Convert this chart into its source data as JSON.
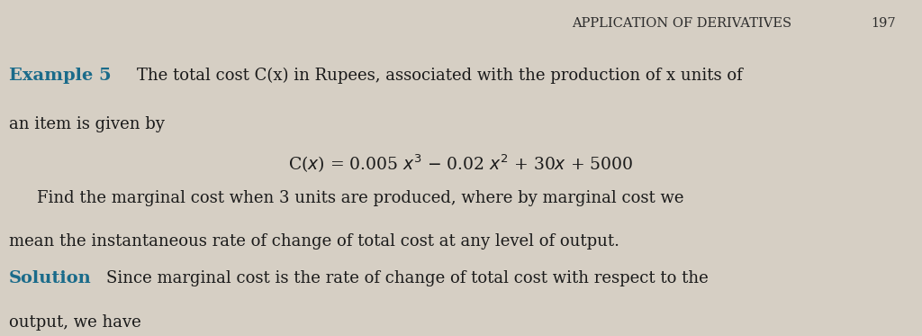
{
  "background_color": "#d6cfc4",
  "header_text": "APPLICATION OF DERIVATIVES",
  "page_number": "197",
  "header_color": "#2c2c2c",
  "header_fontsize": 10.5,
  "example_label": "Example 5",
  "example_label_color": "#1a6b8a",
  "example_label_fontsize": 14,
  "body_text_color": "#1a1a1a",
  "body_fontsize": 13,
  "formula_fontsize": 13.5,
  "solution_label": "Solution",
  "solution_label_color": "#1a6b8a",
  "solution_label_fontsize": 14
}
